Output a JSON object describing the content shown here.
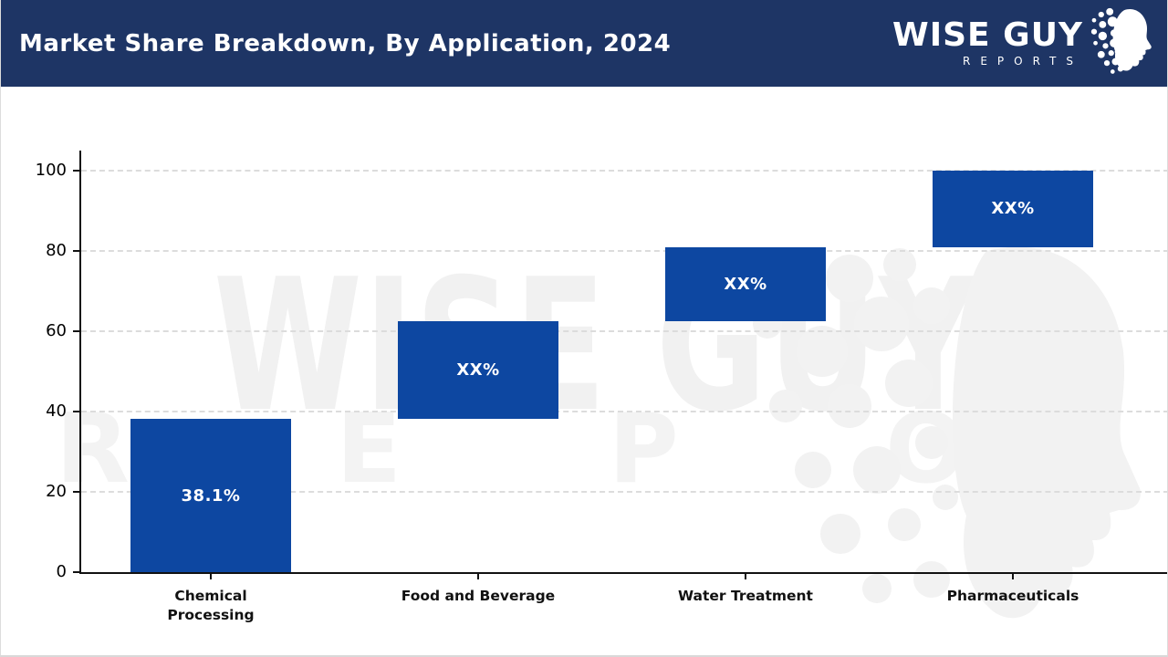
{
  "header": {
    "title": "Market Share Breakdown, By Application, 2024",
    "logo": {
      "line1": "WISE GUY",
      "line2": "REPORTS"
    }
  },
  "watermark": {
    "line1": "WISE GUY",
    "line2": "R E P O R T S"
  },
  "chart_data": {
    "type": "bar",
    "subtype": "waterfall",
    "title": "Market Share Breakdown, By Application, 2024",
    "categories": [
      "Chemical Processing",
      "Food and Beverage",
      "Water Treatment",
      "Pharmaceuticals"
    ],
    "category_display": [
      "Chemical\nProcessing",
      "Food and Beverage",
      "Water Treatment",
      "Pharmaceuticals"
    ],
    "segments": [
      {
        "category": "Chemical Processing",
        "start": 0,
        "end": 38.1,
        "label": "38.1%"
      },
      {
        "category": "Food and Beverage",
        "start": 38.1,
        "end": 62.4,
        "label": "XX%"
      },
      {
        "category": "Water Treatment",
        "start": 62.4,
        "end": 81.0,
        "label": "XX%"
      },
      {
        "category": "Pharmaceuticals",
        "start": 81.0,
        "end": 100.0,
        "label": "XX%"
      }
    ],
    "yticks": [
      0,
      20,
      40,
      60,
      80,
      100
    ],
    "ylim": [
      0,
      105
    ],
    "xlabel": "",
    "ylabel": "",
    "grid": "horizontal-dashed",
    "legend": "none",
    "bar_color": "#0d47a1",
    "bar_label_color": "#ffffff"
  },
  "colors": {
    "header_bg": "#1e3565",
    "bar": "#0d47a1",
    "grid": "#dcdcdc",
    "axis": "#111111",
    "watermark": "#f1f1f1"
  }
}
